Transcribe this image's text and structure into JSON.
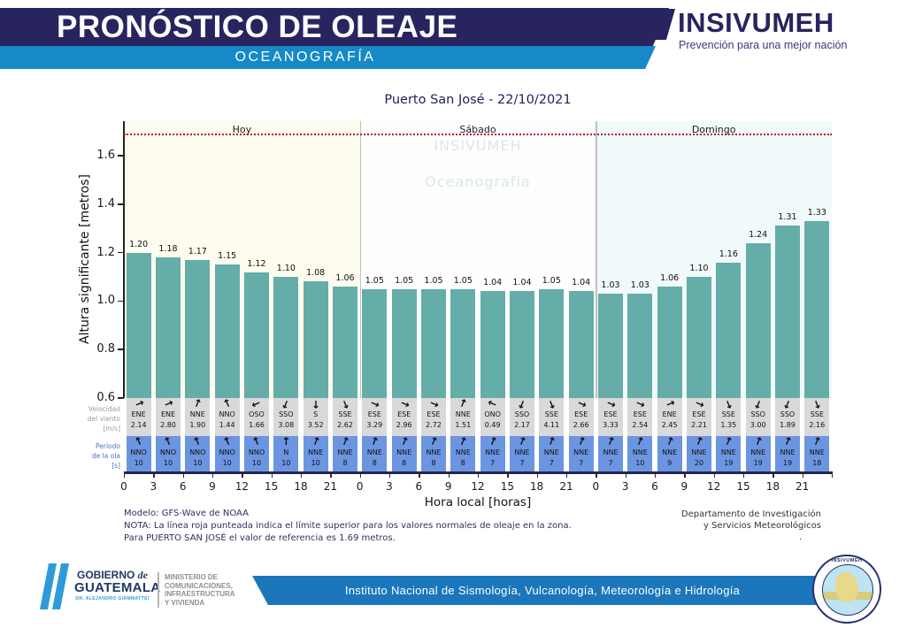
{
  "header": {
    "title": "PRONÓSTICO DE OLEAJE",
    "subtitle": "OCEANOGRAFÍA",
    "logo_text": "INSIVUMEH",
    "logo_tagline": "Prevención para una mejor nación"
  },
  "chart_data": {
    "type": "bar",
    "title": "Puerto San José  -  22/10/2021",
    "ylabel": "Altura significante [metros]",
    "xlabel": "Hora local [horas]",
    "ylim": [
      0.6,
      1.745
    ],
    "yticks": [
      0.6,
      0.8,
      1.0,
      1.2,
      1.4,
      1.6
    ],
    "grid": false,
    "bar_color": "#64ADA8",
    "reference_line": {
      "value": 1.69,
      "color": "#B3202C",
      "style": "dotted"
    },
    "watermark": [
      "INSIVUMEH",
      "Oceanografía"
    ],
    "days": [
      {
        "label": "Hoy",
        "bg": "#FDFCEF"
      },
      {
        "label": "Sábado",
        "bg": "#FEFEFE"
      },
      {
        "label": "Domingo",
        "bg": "#F1F9FB"
      }
    ],
    "columns": [
      {
        "day": 0,
        "hour": "0",
        "height": 1.2,
        "height_label": "1.20",
        "wind_dir": "ENE",
        "wind_speed": "2.14",
        "wave_dir": "NNO",
        "wave_period": "10"
      },
      {
        "day": 0,
        "hour": "3",
        "height": 1.18,
        "height_label": "1.18",
        "wind_dir": "ENE",
        "wind_speed": "2.80",
        "wave_dir": "NNO",
        "wave_period": "10"
      },
      {
        "day": 0,
        "hour": "6",
        "height": 1.17,
        "height_label": "1.17",
        "wind_dir": "NNE",
        "wind_speed": "1.90",
        "wave_dir": "NNO",
        "wave_period": "10"
      },
      {
        "day": 0,
        "hour": "9",
        "height": 1.15,
        "height_label": "1.15",
        "wind_dir": "NNO",
        "wind_speed": "1.44",
        "wave_dir": "NNO",
        "wave_period": "10"
      },
      {
        "day": 0,
        "hour": "12",
        "height": 1.12,
        "height_label": "1.12",
        "wind_dir": "OSO",
        "wind_speed": "1.66",
        "wave_dir": "NNO",
        "wave_period": "10"
      },
      {
        "day": 0,
        "hour": "15",
        "height": 1.1,
        "height_label": "1.10",
        "wind_dir": "SSO",
        "wind_speed": "3.08",
        "wave_dir": "N",
        "wave_period": "10"
      },
      {
        "day": 0,
        "hour": "18",
        "height": 1.08,
        "height_label": "1.08",
        "wind_dir": "S",
        "wind_speed": "3.52",
        "wave_dir": "NNE",
        "wave_period": "10"
      },
      {
        "day": 0,
        "hour": "21",
        "height": 1.06,
        "height_label": "1.06",
        "wind_dir": "SSE",
        "wind_speed": "2.62",
        "wave_dir": "NNE",
        "wave_period": "8"
      },
      {
        "day": 1,
        "hour": "0",
        "height": 1.05,
        "height_label": "1.05",
        "wind_dir": "ESE",
        "wind_speed": "3.29",
        "wave_dir": "NNE",
        "wave_period": "8"
      },
      {
        "day": 1,
        "hour": "3",
        "height": 1.05,
        "height_label": "1.05",
        "wind_dir": "ESE",
        "wind_speed": "2.96",
        "wave_dir": "NNE",
        "wave_period": "8"
      },
      {
        "day": 1,
        "hour": "6",
        "height": 1.05,
        "height_label": "1.05",
        "wind_dir": "ESE",
        "wind_speed": "2.72",
        "wave_dir": "NNE",
        "wave_period": "8"
      },
      {
        "day": 1,
        "hour": "9",
        "height": 1.05,
        "height_label": "1.05",
        "wind_dir": "NNE",
        "wind_speed": "1.51",
        "wave_dir": "NNE",
        "wave_period": "8"
      },
      {
        "day": 1,
        "hour": "12",
        "height": 1.04,
        "height_label": "1.04",
        "wind_dir": "ONO",
        "wind_speed": "0.49",
        "wave_dir": "NNE",
        "wave_period": "7"
      },
      {
        "day": 1,
        "hour": "15",
        "height": 1.04,
        "height_label": "1.04",
        "wind_dir": "SSO",
        "wind_speed": "2.17",
        "wave_dir": "NNE",
        "wave_period": "7"
      },
      {
        "day": 1,
        "hour": "18",
        "height": 1.05,
        "height_label": "1.05",
        "wind_dir": "SSE",
        "wind_speed": "4.11",
        "wave_dir": "NNE",
        "wave_period": "7"
      },
      {
        "day": 1,
        "hour": "21",
        "height": 1.04,
        "height_label": "1.04",
        "wind_dir": "ESE",
        "wind_speed": "2.66",
        "wave_dir": "NNE",
        "wave_period": "7"
      },
      {
        "day": 2,
        "hour": "0",
        "height": 1.03,
        "height_label": "1.03",
        "wind_dir": "ESE",
        "wind_speed": "3.33",
        "wave_dir": "NNE",
        "wave_period": "7"
      },
      {
        "day": 2,
        "hour": "3",
        "height": 1.03,
        "height_label": "1.03",
        "wind_dir": "ESE",
        "wind_speed": "2.54",
        "wave_dir": "NNE",
        "wave_period": "10"
      },
      {
        "day": 2,
        "hour": "6",
        "height": 1.06,
        "height_label": "1.06",
        "wind_dir": "ENE",
        "wind_speed": "2.45",
        "wave_dir": "NNE",
        "wave_period": "9"
      },
      {
        "day": 2,
        "hour": "9",
        "height": 1.1,
        "height_label": "1.10",
        "wind_dir": "ESE",
        "wind_speed": "2.21",
        "wave_dir": "NNE",
        "wave_period": "20"
      },
      {
        "day": 2,
        "hour": "12",
        "height": 1.16,
        "height_label": "1.16",
        "wind_dir": "SSE",
        "wind_speed": "1.35",
        "wave_dir": "NNE",
        "wave_period": "19"
      },
      {
        "day": 2,
        "hour": "15",
        "height": 1.24,
        "height_label": "1.24",
        "wind_dir": "SSO",
        "wind_speed": "3.00",
        "wave_dir": "NNE",
        "wave_period": "19"
      },
      {
        "day": 2,
        "hour": "18",
        "height": 1.31,
        "height_label": "1.31",
        "wind_dir": "SSO",
        "wind_speed": "1.89",
        "wave_dir": "NNE",
        "wave_period": "19"
      },
      {
        "day": 2,
        "hour": "21",
        "height": 1.33,
        "height_label": "1.33",
        "wind_dir": "SSE",
        "wind_speed": "2.16",
        "wave_dir": "NNE",
        "wave_period": "18"
      }
    ]
  },
  "table": {
    "wind_label": [
      "Velocidad",
      "del viento",
      "[m/s]"
    ],
    "wave_label": [
      "Período",
      "de la ola",
      "[s]"
    ],
    "wind_row_bg": "#D9D9D9",
    "wave_row_bg": "#6B95E1"
  },
  "notes": {
    "model": "Modelo: GFS-Wave de NOAA",
    "line1": "NOTA: La línea roja punteada indica el límite superior para los valores normales de oleaje en la zona.",
    "line2": "Para PUERTO SAN JOSÉ el valor de referencia es 1.69 metros.",
    "dept_line1": "Departamento de Investigación",
    "dept_line2": "y Servicios Meteorológicos",
    "dept_dot": "."
  },
  "footer": {
    "gov_line1_bold": "GOBIERNO",
    "gov_line1_script": "de",
    "gov_line2": "GUATEMALA",
    "gov_caption": "DR. ALEJANDRO GIAMMATTEI",
    "ministry": [
      "MINISTERIO DE",
      "COMUNICACIONES,",
      "INFRAESTRUCTURA",
      "Y VIVIENDA"
    ],
    "banner": "Instituto Nacional de Sismología, Vulcanología, Meteorología e Hidrología",
    "seal_text": "INSIVUMEH"
  },
  "colors": {
    "header_navy": "#282460",
    "header_blue": "#1689C6",
    "banner_blue": "#1B76BC",
    "gov_blue": "#2E9BD8",
    "bar_teal": "#64ADA8",
    "reference_red": "#B3202C"
  }
}
